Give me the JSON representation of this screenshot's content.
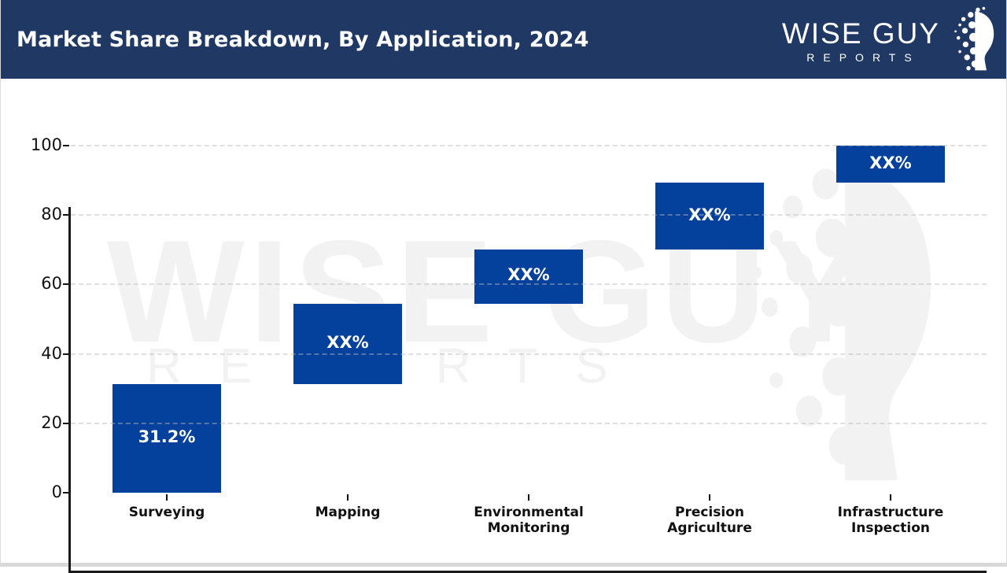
{
  "header": {
    "title": "Market Share Breakdown, By Application, 2024",
    "logo": {
      "line1": "WISE GUY",
      "line2": "REPORTS"
    }
  },
  "watermark": {
    "line1": "WISE GUY",
    "line2": "REPORTS"
  },
  "colors": {
    "header_bg": "#1f3864",
    "bar": "#04419c",
    "axis": "#1a1a1a",
    "grid": "#dddddd",
    "watermark": "#f2f2f2",
    "bar_label_text": "#ffffff",
    "bottom_strip": "#d9d9d9"
  },
  "chart_data": {
    "type": "bar",
    "variant": "floating-waterfall",
    "title": "Market Share Breakdown, By Application, 2024",
    "categories": [
      "Surveying",
      "Mapping",
      "Environmental Monitoring",
      "Precision Agriculture",
      "Infrastructure Inspection"
    ],
    "category_label_lines": [
      [
        "Surveying"
      ],
      [
        "Mapping"
      ],
      [
        "Environmental",
        "Monitoring"
      ],
      [
        "Precision",
        "Agriculture"
      ],
      [
        "Infrastructure",
        "Inspection"
      ]
    ],
    "segments": [
      {
        "category": "Surveying",
        "start": 0,
        "end": 31.2,
        "label": "31.2%"
      },
      {
        "category": "Mapping",
        "start": 31.2,
        "end": 54.5,
        "label": "XX%"
      },
      {
        "category": "Environmental Monitoring",
        "start": 54.5,
        "end": 70,
        "label": "XX%"
      },
      {
        "category": "Precision Agriculture",
        "start": 70,
        "end": 89.3,
        "label": "XX%"
      },
      {
        "category": "Infrastructure Inspection",
        "start": 89.3,
        "end": 100,
        "label": "XX%"
      }
    ],
    "ylim": [
      0,
      100
    ],
    "yticks": [
      0,
      20,
      40,
      60,
      80,
      100
    ],
    "xlabel": "",
    "ylabel": "",
    "grid": "horizontal dashed",
    "legend": "none",
    "bar_color": "#04419c"
  }
}
